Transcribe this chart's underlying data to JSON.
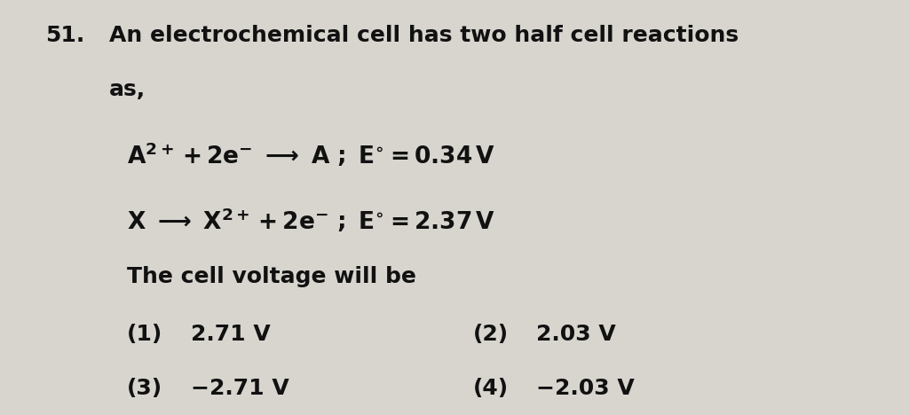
{
  "background_color": "#d8d5cf",
  "text_color": "#111111",
  "fig_width": 10.24,
  "fig_height": 4.68,
  "dpi": 100,
  "q_num": "51.",
  "q_line1": "An electrochemical cell has two half cell reactions",
  "q_line2": "as,",
  "question2": "The cell voltage will be",
  "opt1_num": "(1)",
  "opt1_val": "2.71 V",
  "opt2_num": "(2)",
  "opt2_val": "2.03 V",
  "opt3_num": "(3)",
  "opt3_val": "−2.71 V",
  "opt4_num": "(4)",
  "opt4_val": "−2.03 V"
}
